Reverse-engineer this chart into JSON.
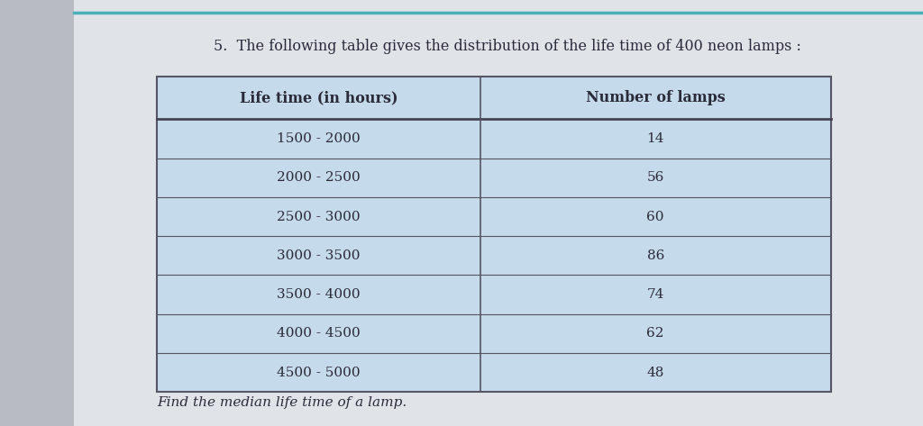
{
  "title": "5.  The following table gives the distribution of the life time of 400 neon lamps :",
  "footer": "Find the median life time of a lamp.",
  "col1_header": "Life time (in hours)",
  "col2_header": "Number of lamps",
  "rows": [
    [
      "1500 - 2000",
      "14"
    ],
    [
      "2000 - 2500",
      "56"
    ],
    [
      "2500 - 3000",
      "60"
    ],
    [
      "3000 - 3500",
      "86"
    ],
    [
      "3500 - 4000",
      "74"
    ],
    [
      "4000 - 4500",
      "62"
    ],
    [
      "4500 - 5000",
      "48"
    ]
  ],
  "table_bg": "#c5daea",
  "page_bg": "#d8dce0",
  "page_right_bg": "#e8eaec",
  "text_color": "#2a2a3a",
  "border_color": "#555566",
  "header_line_color": "#444455",
  "title_fontsize": 11.5,
  "header_fontsize": 11.5,
  "cell_fontsize": 11,
  "footer_fontsize": 11
}
